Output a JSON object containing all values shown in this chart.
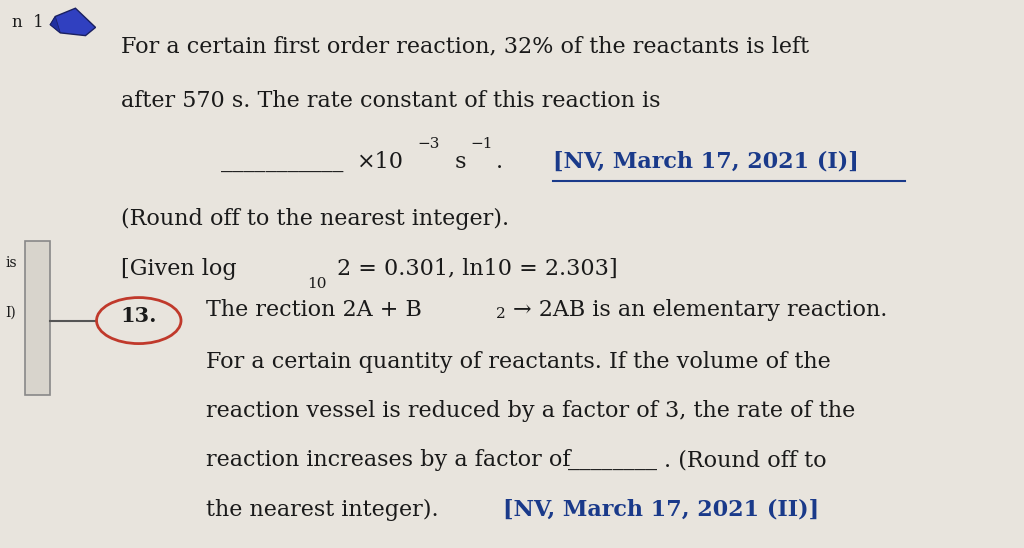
{
  "background_color": "#e8e4dd",
  "text_color": "#1a1a1a",
  "nv_color": "#1a3a8a",
  "circle_color": "#c0392b",
  "line1": "For a certain first order reaction, 32% of the reactants is left",
  "line2": "after 570 s. The rate constant of this reaction is",
  "line3_pre": "___________",
  "line3_mid": "×10",
  "line3_exp1": "−3",
  "line3_s": " s",
  "line3_exp2": "−1",
  "line3_dot": ".",
  "line3_nv": "[NV, March 17, 2021 (I)]",
  "line4": "(Round off to the nearest integer).",
  "line5a": "[Given log",
  "line5b": "10",
  "line5c": "2 = 0.301, ln10 = 2.303]",
  "q13_label": "13.",
  "q13a": "The rection 2A + B",
  "q13b": "2",
  "q13c": "→ 2AB is an elementary reaction.",
  "q13d": "For a certain quantity of reactants. If the volume of the",
  "q13e": "reaction vessel is reduced by a factor of 3, the rate of the",
  "q13f": "reaction increases by a factor of",
  "q13f_blank": "________",
  "q13f_end": ". (Round off to",
  "q13g": "the nearest integer).",
  "q13g_nv": "[NV, March 17, 2021 (II)]",
  "left_text1": "is",
  "left_text2": "I)",
  "top_left": "n  1",
  "marker_color": "#3040c0",
  "fontsize": 16
}
